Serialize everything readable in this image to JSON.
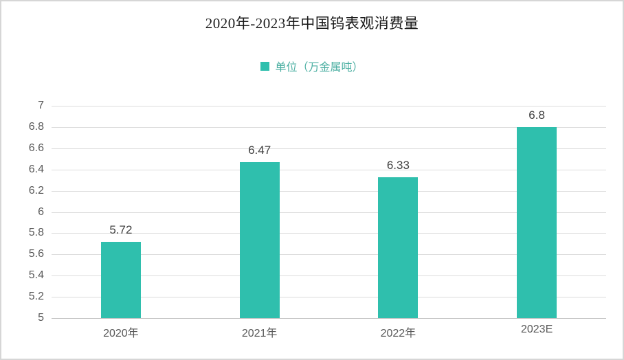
{
  "title": "2020年-2023年中国钨表观消费量",
  "legend": {
    "label": "单位（万金属吨）"
  },
  "colors": {
    "bar": "#2fbfad",
    "grid": "#dcdcdc",
    "axis_text": "#595959",
    "data_label": "#404040",
    "legend_text": "#4bafa2",
    "title_text": "#1a1a1a",
    "frame_border": "#d6d6d6"
  },
  "chart_data": {
    "type": "bar",
    "title": "2020年-2023年中国钨表观消费量",
    "legend_entries": [
      "单位（万金属吨）"
    ],
    "legend_position": "top",
    "categories": [
      "2020年",
      "2021年",
      "2022年",
      "2023E"
    ],
    "values": [
      5.72,
      6.47,
      6.33,
      6.8
    ],
    "data_labels": [
      "5.72",
      "6.47",
      "6.33",
      "6.8"
    ],
    "xlabel": "",
    "ylabel": "",
    "ylim": [
      5,
      7
    ],
    "ytick_step": 0.2,
    "yticks": [
      "7",
      "6.8",
      "6.6",
      "6.4",
      "6.2",
      "6",
      "5.8",
      "5.6",
      "5.4",
      "5.2",
      "5"
    ],
    "grid": true
  }
}
